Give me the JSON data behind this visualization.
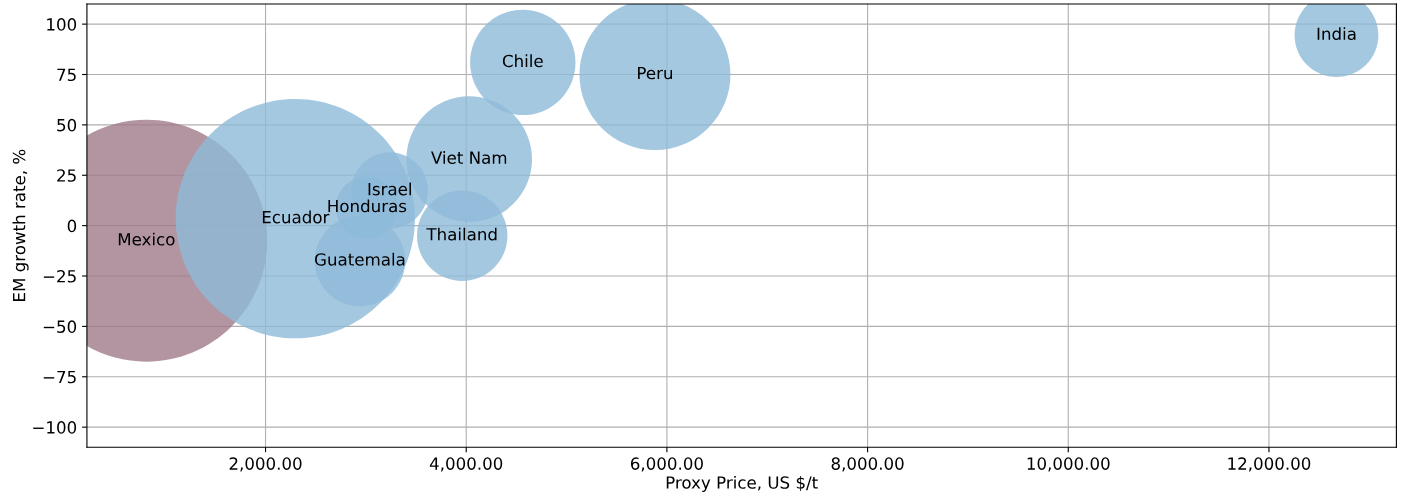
{
  "chart_data": {
    "type": "bubble",
    "xlabel": "Proxy Price, US $/t",
    "ylabel": "EM growth rate, %",
    "series": [
      {
        "name": "Mexico",
        "color": "#9f7b89",
        "x": [
          812
        ],
        "values": [
          -7.5
        ],
        "sizes": [
          1
        ]
      },
      {
        "name": "Ecuador",
        "color": "#8fbad9",
        "x": [
          2297
        ],
        "values": [
          3.5
        ],
        "sizes": [
          0.98
        ]
      },
      {
        "name": "Guatemala",
        "color": "#8fbad9",
        "x": [
          2941
        ],
        "values": [
          -17.5
        ],
        "sizes": [
          0.14
        ]
      },
      {
        "name": "Honduras",
        "color": "#8fbad9",
        "x": [
          3010
        ],
        "values": [
          9
        ],
        "sizes": [
          0.066
        ]
      },
      {
        "name": "Israel",
        "color": "#8fbad9",
        "x": [
          3238
        ],
        "values": [
          17.4
        ],
        "sizes": [
          0.1
        ]
      },
      {
        "name": "Viet Nam",
        "color": "#8fbad9",
        "x": [
          4030
        ],
        "values": [
          33
        ],
        "sizes": [
          0.27
        ]
      },
      {
        "name": "Thailand",
        "color": "#8fbad9",
        "x": [
          3960
        ],
        "values": [
          -5
        ],
        "sizes": [
          0.14
        ]
      },
      {
        "name": "Chile",
        "color": "#8fbad9",
        "x": [
          4564
        ],
        "values": [
          81
        ],
        "sizes": [
          0.19
        ]
      },
      {
        "name": "Peru",
        "color": "#8fbad9",
        "x": [
          5881
        ],
        "values": [
          75
        ],
        "sizes": [
          0.39
        ]
      },
      {
        "name": "India",
        "color": "#8fbad9",
        "x": [
          12673
        ],
        "values": [
          94.5
        ],
        "sizes": [
          0.12
        ]
      }
    ],
    "xlim": [
      220,
      13270
    ],
    "ylim": [
      -110,
      110
    ],
    "xticks": [
      {
        "value": 2000,
        "label": "2,000.00"
      },
      {
        "value": 4000,
        "label": "4,000.00"
      },
      {
        "value": 6000,
        "label": "6,000.00"
      },
      {
        "value": 8000,
        "label": "8,000.00"
      },
      {
        "value": 10000,
        "label": "10,000.00"
      },
      {
        "value": 12000,
        "label": "12,000.00"
      }
    ],
    "yticks": [
      -100,
      -75,
      -50,
      -25,
      0,
      25,
      50,
      75,
      100
    ],
    "grid": true
  }
}
